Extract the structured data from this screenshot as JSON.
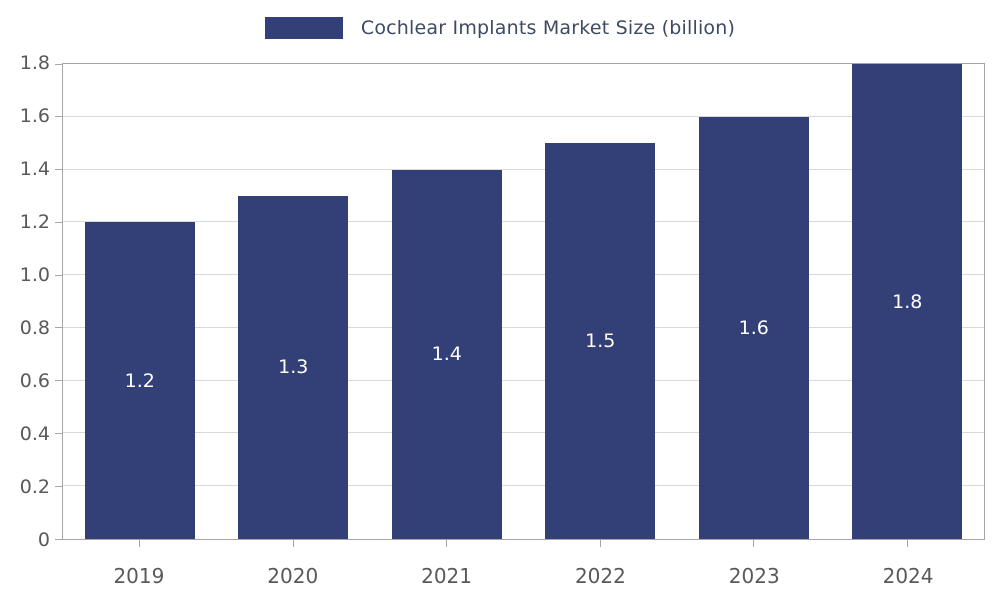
{
  "legend": {
    "label": "Cochlear Implants Market Size (billion)"
  },
  "colors": {
    "bar": "#333f77",
    "title_text": "#3d4a63",
    "tick_text": "#595959",
    "gridline": "#d9d9d9",
    "axis_frame": "#a6a6a6",
    "value_label": "#ffffff"
  },
  "chart_data": {
    "type": "bar",
    "title": "Cochlear Implants Market Size (billion)",
    "categories": [
      "2019",
      "2020",
      "2021",
      "2022",
      "2023",
      "2024"
    ],
    "values": [
      1.2,
      1.3,
      1.4,
      1.5,
      1.6,
      1.8
    ],
    "value_labels": [
      "1.2",
      "1.3",
      "1.4",
      "1.5",
      "1.6",
      "1.8"
    ],
    "xlabel": "",
    "ylabel": "",
    "ylim": [
      0,
      1.8
    ],
    "yticks": [
      0,
      0.2,
      0.4,
      0.6,
      0.8,
      1.0,
      1.2,
      1.4,
      1.6,
      1.8
    ],
    "ytick_labels": [
      "0",
      "0.2",
      "0.4",
      "0.6",
      "0.8",
      "1.0",
      "1.2",
      "1.4",
      "1.6",
      "1.8"
    ],
    "grid": "horizontal",
    "legend_position": "top-center",
    "value_label_position": "center-of-bar"
  }
}
